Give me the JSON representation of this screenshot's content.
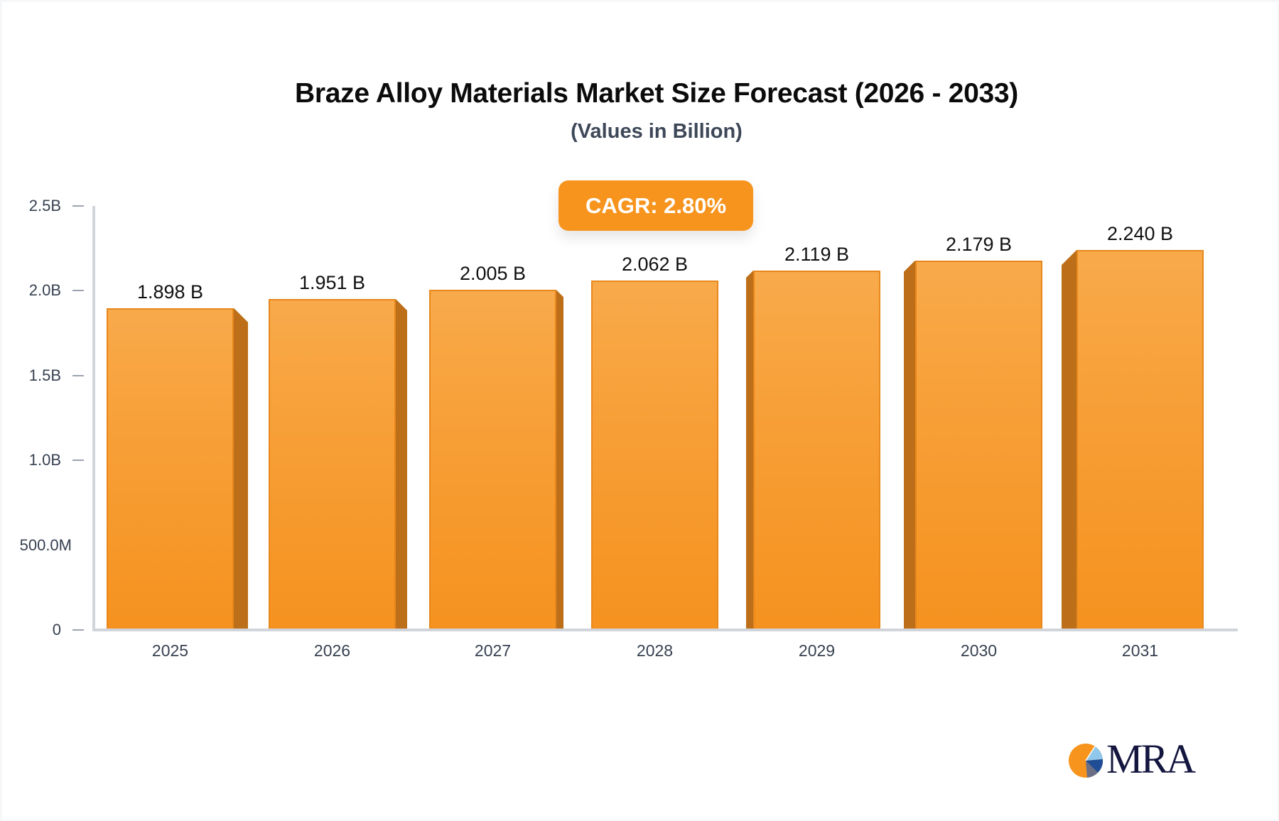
{
  "header": {
    "title": "Braze Alloy Materials Market Size Forecast (2026 - 2033)",
    "subtitle": "(Values in Billion)"
  },
  "badge": {
    "cagr_label": "CAGR: 2.80%",
    "color": "#F7941D"
  },
  "y_axis": {
    "ticks": [
      {
        "label": "2.5B",
        "value": 2.5,
        "dash": true
      },
      {
        "label": "2.0B",
        "value": 2.0,
        "dash": true
      },
      {
        "label": "1.5B",
        "value": 1.5,
        "dash": true
      },
      {
        "label": "1.0B",
        "value": 1.0,
        "dash": true
      },
      {
        "label": "500.0M",
        "value": 0.5,
        "dash": false
      },
      {
        "label": "0",
        "value": 0,
        "dash": true
      }
    ]
  },
  "bars": [
    {
      "year": "2025",
      "value_label": "1.898 B"
    },
    {
      "year": "2026",
      "value_label": "1.951 B"
    },
    {
      "year": "2027",
      "value_label": "2.005 B"
    },
    {
      "year": "2028",
      "value_label": "2.062 B"
    },
    {
      "year": "2029",
      "value_label": "2.119 B"
    },
    {
      "year": "2030",
      "value_label": "2.179 B"
    },
    {
      "year": "2031",
      "value_label": "2.240 B"
    }
  ],
  "colors": {
    "bar_front_top": "#F8AA4B",
    "bar_front_bottom": "#F5921F",
    "bar_side": "#BC6F18",
    "axis": "#D1D5DB",
    "logo_navy": "#14163F"
  },
  "logo": {
    "text": "MRA"
  },
  "chart_data": {
    "type": "bar",
    "title": "Braze Alloy Materials Market Size Forecast (2026 - 2033)",
    "subtitle": "(Values in Billion)",
    "annotation": "CAGR: 2.80%",
    "categories": [
      "2025",
      "2026",
      "2027",
      "2028",
      "2029",
      "2030",
      "2031"
    ],
    "values": [
      1.898,
      1.951,
      2.005,
      2.062,
      2.119,
      2.179,
      2.24
    ],
    "value_labels": [
      "1.898 B",
      "1.951 B",
      "2.005 B",
      "2.062 B",
      "2.119 B",
      "2.179 B",
      "2.240 B"
    ],
    "unit": "Billion",
    "xlabel": "",
    "ylabel": "",
    "ylim": [
      0,
      2.5
    ],
    "yticks": [
      "0",
      "500.0M",
      "1.0B",
      "1.5B",
      "2.0B",
      "2.5B"
    ],
    "grid": false,
    "legend": null
  }
}
